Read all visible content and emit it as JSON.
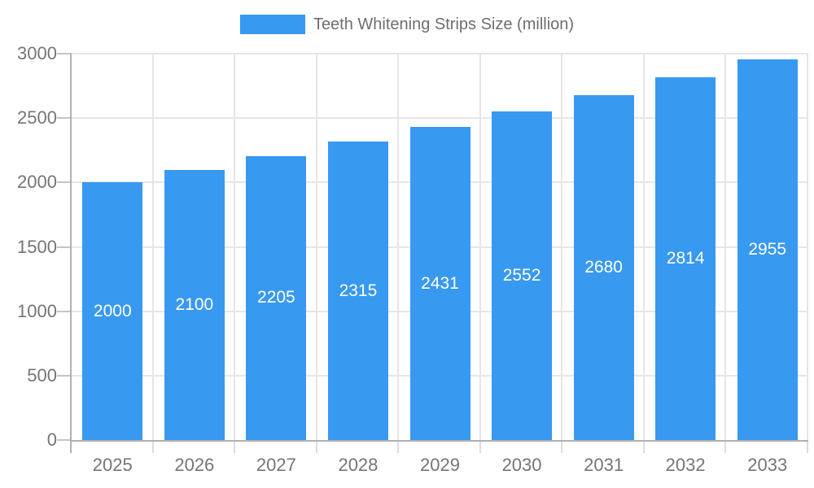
{
  "chart_data": {
    "type": "bar",
    "legend_label": "Teeth Whitening Strips Size (million)",
    "categories": [
      "2025",
      "2026",
      "2027",
      "2028",
      "2029",
      "2030",
      "2031",
      "2032",
      "2033"
    ],
    "values": [
      2000,
      2100,
      2205,
      2315,
      2431,
      2552,
      2680,
      2814,
      2955
    ],
    "title": "",
    "xlabel": "",
    "ylabel": "",
    "ylim": [
      0,
      3000
    ],
    "yticks": [
      0,
      500,
      1000,
      1500,
      2000,
      2500,
      3000
    ],
    "grid": true,
    "legend_position": "top-center",
    "bar_labels_shown": true,
    "colors": {
      "bar": "#3899f0",
      "bar_label": "#ffffff",
      "grid": "#e6e6e6",
      "axis": "#b0b0b0",
      "y_tick": "#c4c4c4",
      "x_tick": "#dcdcdc",
      "tick_text": "#757575",
      "legend_text": "#6e6e6e"
    }
  }
}
